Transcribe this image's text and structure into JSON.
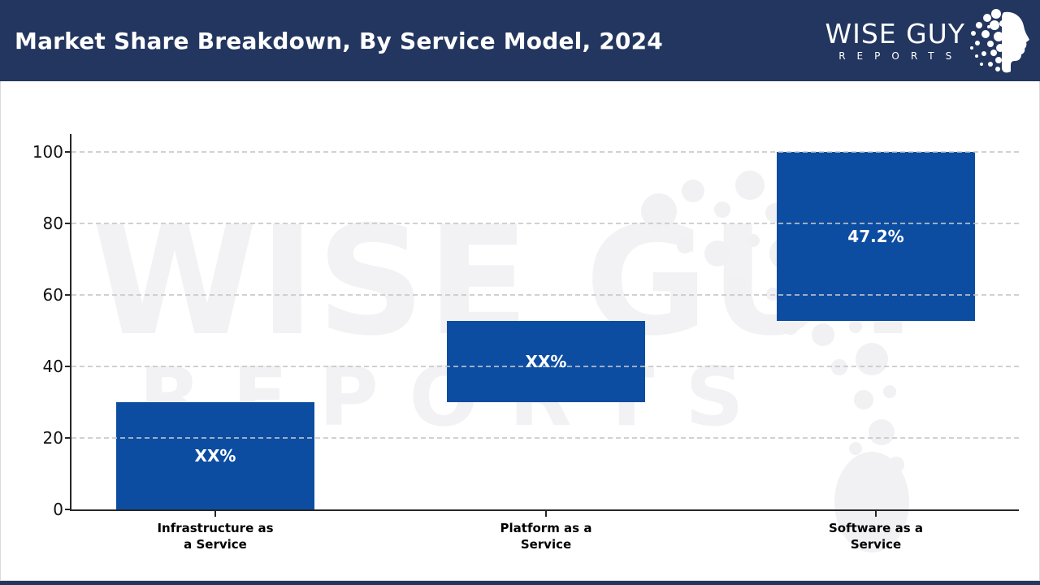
{
  "header": {
    "title": "Market Share Breakdown, By Service Model, 2024",
    "logo": {
      "name": "WISE GUY",
      "subtitle": "REPORTS"
    }
  },
  "watermark": {
    "line1": "WISE GUY",
    "line2": "REPORTS"
  },
  "colors": {
    "header_bg": "#23365f",
    "footer_bg": "#23365f",
    "bar_fill": "#0c4da2",
    "bar_label_text": "#ffffff",
    "axis_line": "#262626",
    "tick_label_text": "#111111",
    "gridline": "#c6c6c6",
    "watermark_text": "#f2f2f4",
    "background": "#ffffff"
  },
  "chart_data": {
    "type": "bar",
    "variant": "stacked-waterfall-to-100",
    "title": "Market Share Breakdown, By Service Model, 2024",
    "xlabel": "",
    "ylabel": "",
    "categories": [
      "Infrastructure as a Service",
      "Platform as a Service",
      "Software as a Service"
    ],
    "category_lines": [
      [
        "Infrastructure as",
        "a Service"
      ],
      [
        "Platform as a",
        "Service"
      ],
      [
        "Software as a",
        "Service"
      ]
    ],
    "bars": [
      {
        "category": "Infrastructure as a Service",
        "start": 0,
        "end": 30,
        "label": "XX%"
      },
      {
        "category": "Platform as a Service",
        "start": 30,
        "end": 52.8,
        "label": "XX%"
      },
      {
        "category": "Software as a Service",
        "start": 52.8,
        "end": 100,
        "label": "47.2%"
      }
    ],
    "yticks": [
      0,
      20,
      40,
      60,
      80,
      100
    ],
    "ylim": [
      0,
      105
    ],
    "grid": "horizontal-dashed",
    "grid_above_bars": true,
    "legend": "none"
  }
}
